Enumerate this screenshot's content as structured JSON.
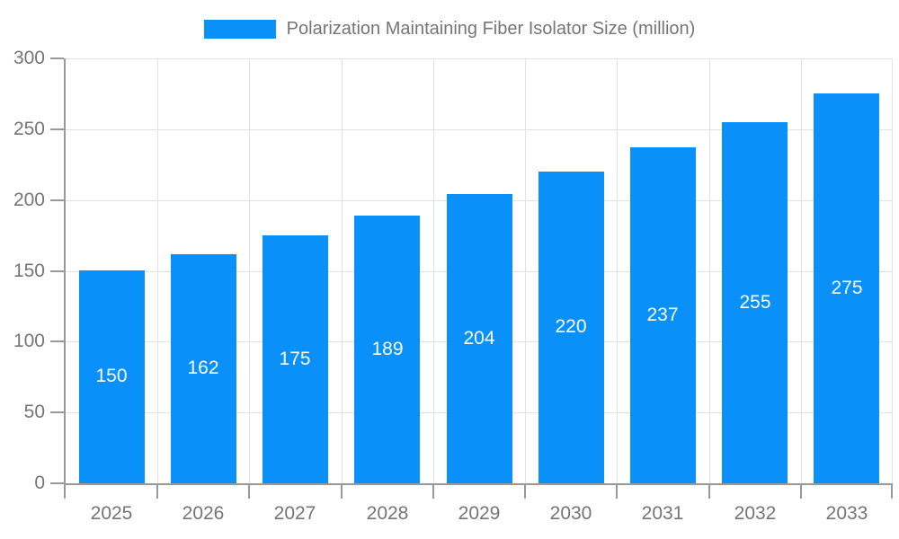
{
  "legend": {
    "label": "Polarization Maintaining Fiber Isolator Size (million)"
  },
  "colors": {
    "bar": "#0990f9",
    "axis": "#999999",
    "grid": "#e2e2e2",
    "text": "#757575",
    "value_label": "#ffffff",
    "background": "#ffffff"
  },
  "chart_data": {
    "type": "bar",
    "categories": [
      "2025",
      "2026",
      "2027",
      "2028",
      "2029",
      "2030",
      "2031",
      "2032",
      "2033"
    ],
    "values": [
      150,
      162,
      175,
      189,
      204,
      220,
      237,
      255,
      275
    ],
    "title": "",
    "xlabel": "",
    "ylabel": "",
    "ylim": [
      0,
      300
    ],
    "yticks": [
      0,
      50,
      100,
      150,
      200,
      250,
      300
    ],
    "legend_entries": [
      "Polarization Maintaining Fiber Isolator Size (million)"
    ],
    "legend_position": "top",
    "grid": true,
    "bar_labels": true,
    "bar_label_position": "center"
  }
}
